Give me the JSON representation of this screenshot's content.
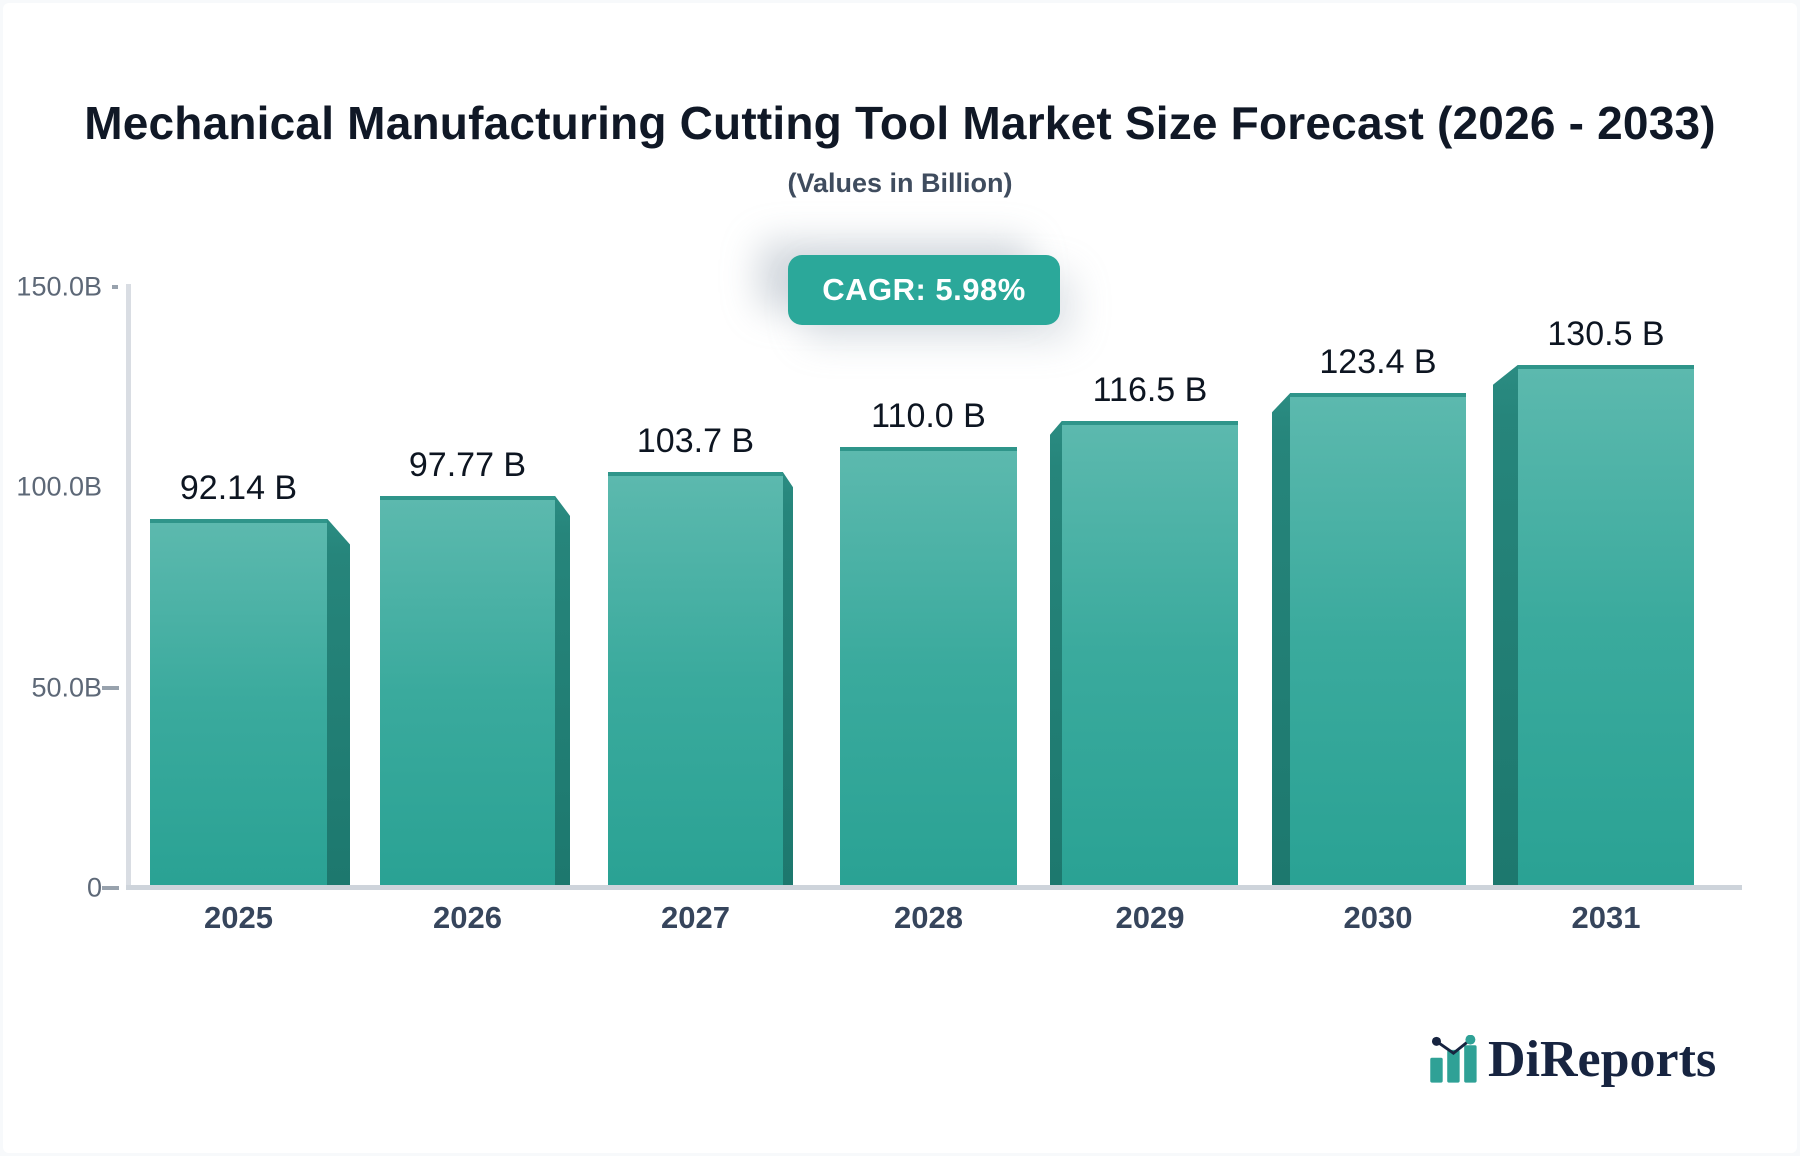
{
  "title": "Mechanical Manufacturing Cutting Tool Market Size Forecast (2026 - 2033)",
  "subtitle": "(Values in Billion)",
  "badge": {
    "label": "CAGR: 5.98%"
  },
  "watermark": {
    "brand": "DiReports"
  },
  "chart_data": {
    "type": "bar",
    "categories": [
      "2025",
      "2026",
      "2027",
      "2028",
      "2029",
      "2030",
      "2031"
    ],
    "values": [
      92.14,
      97.77,
      103.7,
      110.0,
      116.5,
      123.4,
      130.5
    ],
    "value_labels": [
      "92.14 B",
      "97.77 B",
      "103.7 B",
      "110.0 B",
      "116.5 B",
      "123.4 B",
      "130.5 B"
    ],
    "title": "Mechanical Manufacturing Cutting Tool Market Size Forecast (2026 - 2033)",
    "subtitle": "(Values in Billion)",
    "xlabel": "",
    "ylabel": "",
    "ylim": [
      0,
      150
    ],
    "yticks": [
      {
        "label": "150.0B",
        "value": 150,
        "tick": "dot"
      },
      {
        "label": "100.0B",
        "value": 100,
        "tick": "none"
      },
      {
        "label": "50.0B",
        "value": 50,
        "tick": "dash"
      },
      {
        "label": "0",
        "value": 0,
        "tick": "dash"
      }
    ],
    "grid": false,
    "legend": null,
    "annotation": "CAGR: 5.98%",
    "colors": {
      "bar_top": "#5cb9ae",
      "bar_bottom": "#2aa294",
      "bar_side": "#1d786e",
      "accent": "#2ba89a"
    }
  }
}
